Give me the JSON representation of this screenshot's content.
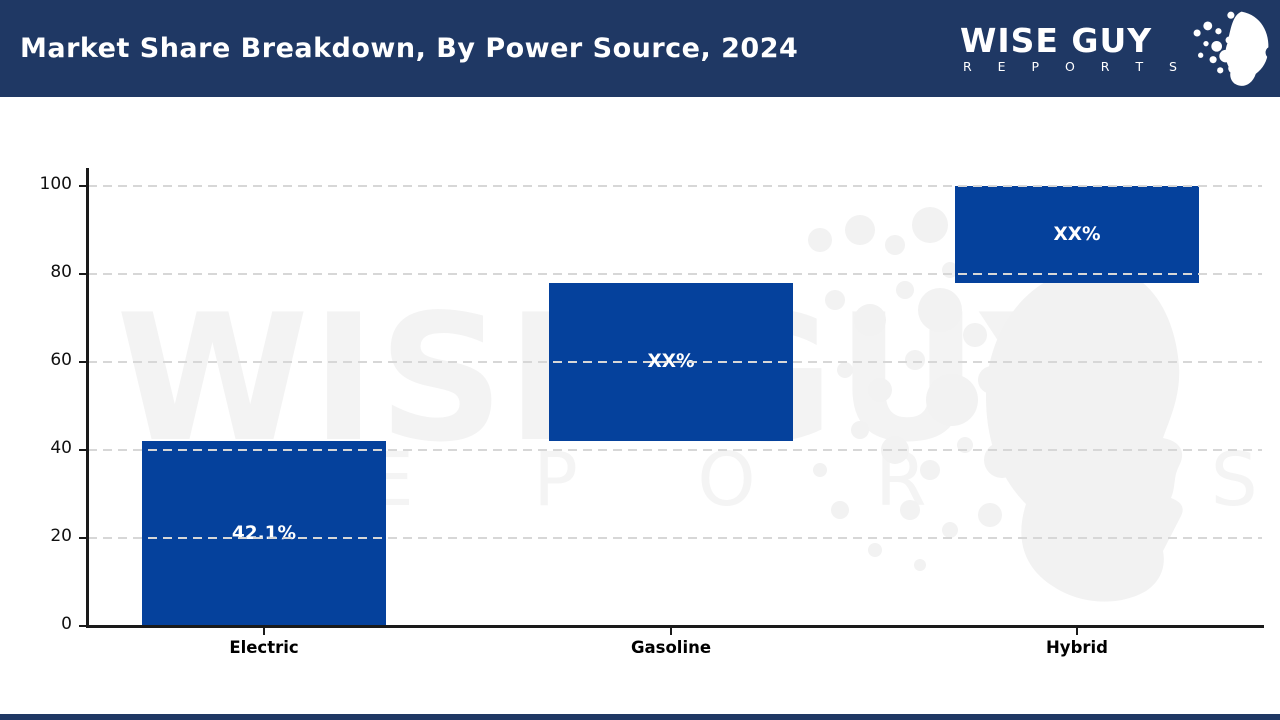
{
  "header": {
    "title": "Market Share Breakdown, By Power Source, 2024",
    "logo": {
      "line1": "WISE GUY",
      "line2": "R E P O R T S"
    }
  },
  "watermark": {
    "line1": "WISE GUY",
    "line2": "R E P O R T S"
  },
  "chart_data": {
    "type": "bar",
    "subtype": "waterfall",
    "title": "Market Share Breakdown, By Power Source, 2024",
    "categories": [
      "Electric",
      "Gasoline",
      "Hybrid"
    ],
    "segments": [
      {
        "category": "Electric",
        "start": 0,
        "end": 42.1,
        "label": "42.1%"
      },
      {
        "category": "Gasoline",
        "start": 42.1,
        "end": 78,
        "label": "XX%"
      },
      {
        "category": "Hybrid",
        "start": 78,
        "end": 100,
        "label": "XX%"
      }
    ],
    "ylim": [
      0,
      100
    ],
    "yticks": [
      0,
      20,
      40,
      60,
      80,
      100
    ],
    "grid": "horizontal-dashed",
    "legend": "none",
    "bar_color": "#05419c",
    "label_color": "#ffffff"
  },
  "colors": {
    "header_bg": "#1f3864",
    "footer_bg": "#1f3864",
    "bar": "#05419c",
    "grid": "#d7d7d7",
    "axis": "#1a1a1a",
    "watermark": "#f3f3f3"
  }
}
